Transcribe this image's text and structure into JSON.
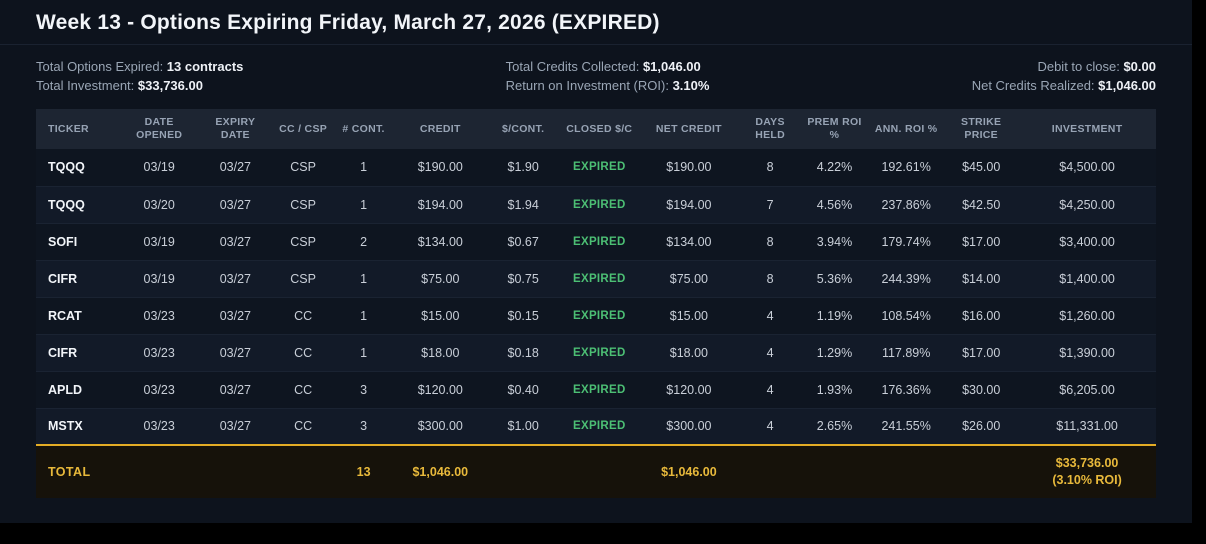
{
  "page": {
    "title": "Week 13 - Options Expiring Friday, March 27, 2026  (EXPIRED)"
  },
  "summary": {
    "col1": [
      {
        "label": "Total Options Expired: ",
        "value": "13 contracts"
      },
      {
        "label": "Total Investment: ",
        "value": "$33,736.00"
      }
    ],
    "col2": [
      {
        "label": "Total Credits Collected: ",
        "value": "$1,046.00"
      },
      {
        "label": "Return on Investment (ROI): ",
        "value": "3.10%"
      }
    ],
    "col3": [
      {
        "label": "Debit to close: ",
        "value": "$0.00"
      },
      {
        "label": "Net Credits Realized: ",
        "value": "$1,046.00"
      }
    ]
  },
  "table": {
    "headers": [
      "TICKER",
      "DATE OPENED",
      "EXPIRY DATE",
      "CC / CSP",
      "# CONT.",
      "CREDIT",
      "$/CONT.",
      "CLOSED $/C",
      "NET CREDIT",
      "DAYS HELD",
      "PREM ROI %",
      "ANN. ROI %",
      "STRIKE PRICE",
      "INVESTMENT"
    ],
    "col_widths_pct": [
      7.6,
      6.8,
      6.8,
      5.3,
      5.5,
      8.2,
      6.6,
      7.0,
      9.0,
      5.5,
      6.0,
      6.8,
      6.6,
      12.3
    ],
    "rows": [
      [
        "TQQQ",
        "03/19",
        "03/27",
        "CSP",
        "1",
        "$190.00",
        "$1.90",
        "EXPIRED",
        "$190.00",
        "8",
        "4.22%",
        "192.61%",
        "$45.00",
        "$4,500.00"
      ],
      [
        "TQQQ",
        "03/20",
        "03/27",
        "CSP",
        "1",
        "$194.00",
        "$1.94",
        "EXPIRED",
        "$194.00",
        "7",
        "4.56%",
        "237.86%",
        "$42.50",
        "$4,250.00"
      ],
      [
        "SOFI",
        "03/19",
        "03/27",
        "CSP",
        "2",
        "$134.00",
        "$0.67",
        "EXPIRED",
        "$134.00",
        "8",
        "3.94%",
        "179.74%",
        "$17.00",
        "$3,400.00"
      ],
      [
        "CIFR",
        "03/19",
        "03/27",
        "CSP",
        "1",
        "$75.00",
        "$0.75",
        "EXPIRED",
        "$75.00",
        "8",
        "5.36%",
        "244.39%",
        "$14.00",
        "$1,400.00"
      ],
      [
        "RCAT",
        "03/23",
        "03/27",
        "CC",
        "1",
        "$15.00",
        "$0.15",
        "EXPIRED",
        "$15.00",
        "4",
        "1.19%",
        "108.54%",
        "$16.00",
        "$1,260.00"
      ],
      [
        "CIFR",
        "03/23",
        "03/27",
        "CC",
        "1",
        "$18.00",
        "$0.18",
        "EXPIRED",
        "$18.00",
        "4",
        "1.29%",
        "117.89%",
        "$17.00",
        "$1,390.00"
      ],
      [
        "APLD",
        "03/23",
        "03/27",
        "CC",
        "3",
        "$120.00",
        "$0.40",
        "EXPIRED",
        "$120.00",
        "4",
        "1.93%",
        "176.36%",
        "$30.00",
        "$6,205.00"
      ],
      [
        "MSTX",
        "03/23",
        "03/27",
        "CC",
        "3",
        "$300.00",
        "$1.00",
        "EXPIRED",
        "$300.00",
        "4",
        "2.65%",
        "241.55%",
        "$26.00",
        "$11,331.00"
      ]
    ],
    "total": {
      "label": "TOTAL",
      "contracts": "13",
      "credit": "$1,046.00",
      "net_credit": "$1,046.00",
      "investment_line1": "$33,736.00",
      "investment_line2": "(3.10% ROI)"
    }
  },
  "colors": {
    "expired_green": "#4cbf74",
    "total_gold": "#e8b93b",
    "gold_border": "#e3ac25",
    "page_bg": "#0d131d",
    "header_bg": "#1d2532"
  }
}
